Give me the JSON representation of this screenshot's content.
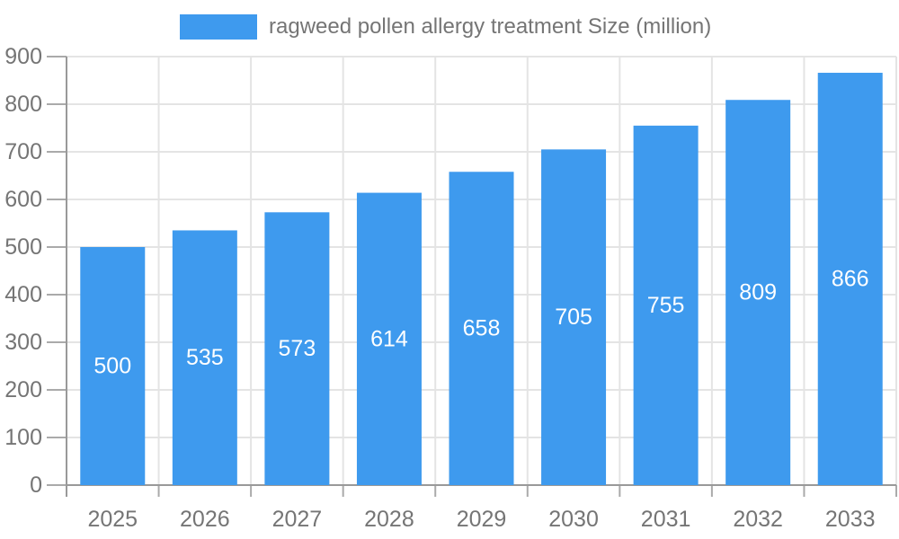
{
  "legend": {
    "label": "ragweed pollen allergy treatment Size (million)"
  },
  "chart_data": {
    "type": "bar",
    "title": "ragweed pollen allergy treatment Size (million)",
    "series_name": "ragweed pollen allergy treatment Size (million)",
    "categories": [
      "2025",
      "2026",
      "2027",
      "2028",
      "2029",
      "2030",
      "2031",
      "2032",
      "2033"
    ],
    "values": [
      500,
      535,
      573,
      614,
      658,
      705,
      755,
      809,
      866
    ],
    "value_labels": [
      "500",
      "535",
      "573",
      "614",
      "658",
      "705",
      "755",
      "809",
      "866"
    ],
    "xlabel": "",
    "ylabel": "",
    "ylim": [
      0,
      900
    ],
    "y_tick_interval": 100,
    "y_tick_labels": [
      "0",
      "100",
      "200",
      "300",
      "400",
      "500",
      "600",
      "700",
      "800",
      "900"
    ],
    "grid": true,
    "legend_position": "top",
    "colors": {
      "bar": "#3E9AEE",
      "value_label": "#ffffff",
      "axis_text": "#757575",
      "axis_line": "#999999",
      "tick_line": "#aaaaaa",
      "gridline": "#e4e4e4",
      "background": "#ffffff"
    }
  }
}
